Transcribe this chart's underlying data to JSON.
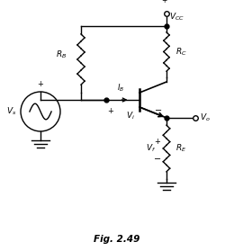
{
  "title": "Fig. 2.49",
  "bg_color": "#ffffff",
  "line_color": "#000000",
  "fig_width": 2.6,
  "fig_height": 2.79,
  "dpi": 100
}
